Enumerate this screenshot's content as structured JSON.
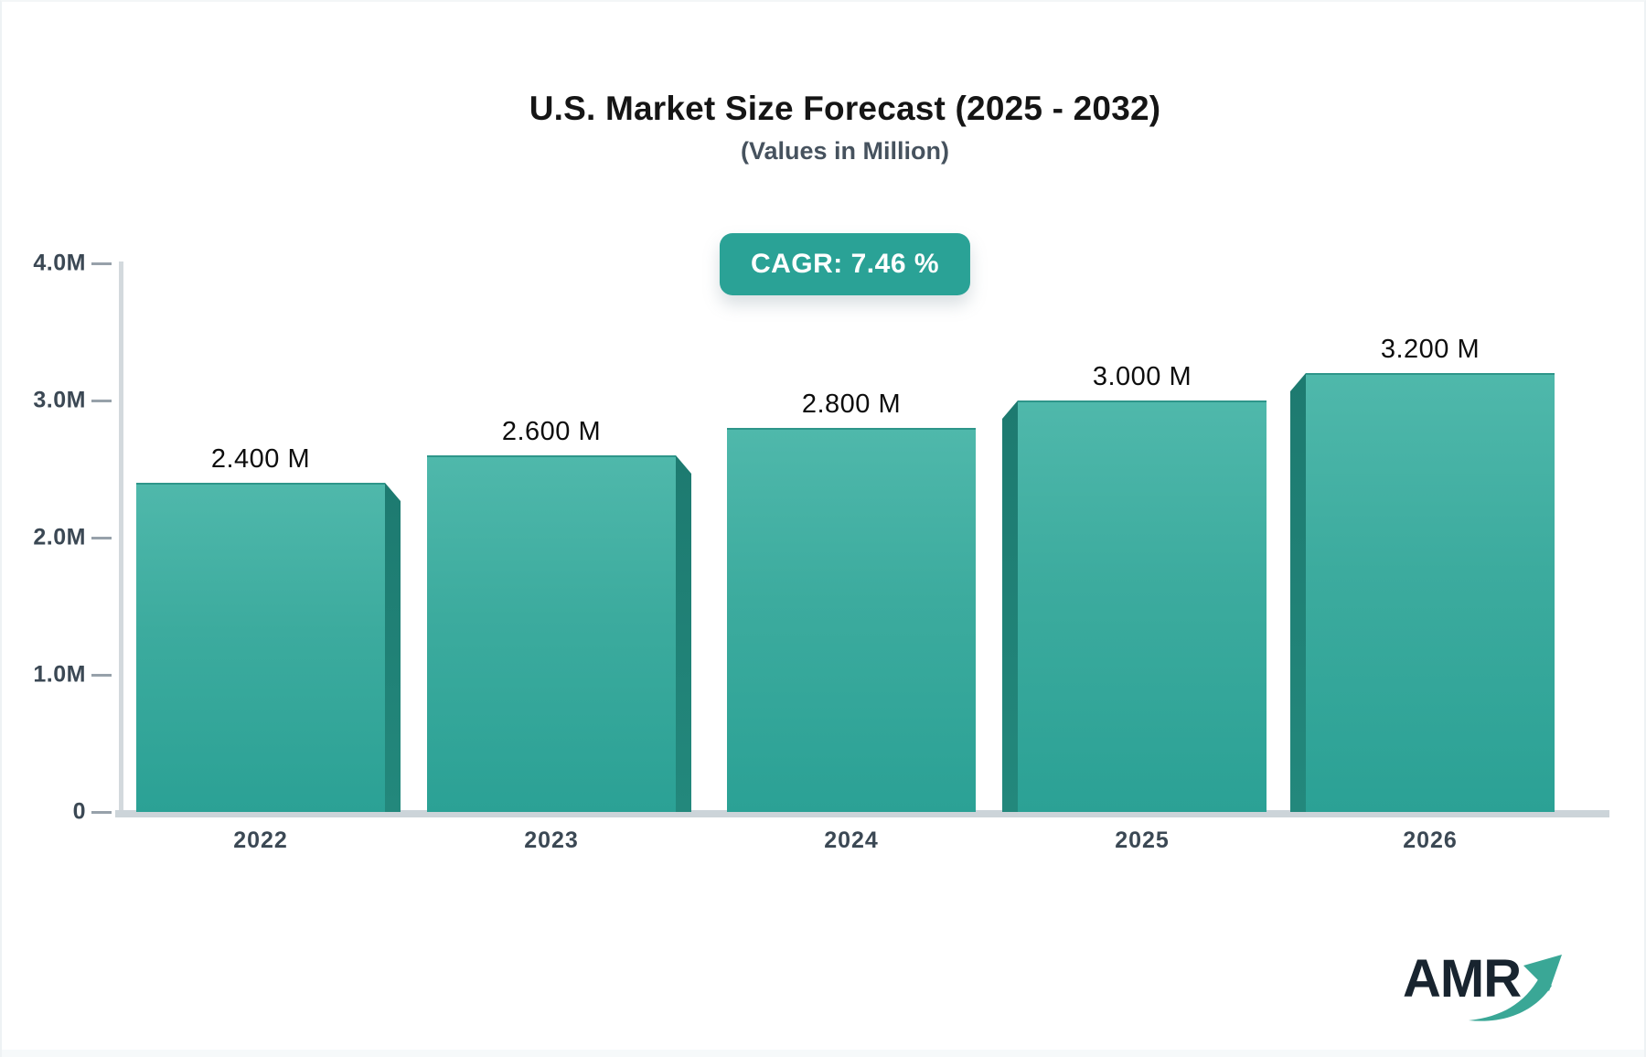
{
  "chart_data": {
    "type": "bar",
    "title": "U.S. Market Size Forecast (2025 - 2032)",
    "subtitle": "(Values in Million)",
    "annotation": "CAGR: 7.46 %",
    "categories": [
      "2022",
      "2023",
      "2024",
      "2025",
      "2026"
    ],
    "values": [
      2.4,
      2.6,
      2.8,
      3.0,
      3.2
    ],
    "value_labels": [
      "2.400 M",
      "2.600 M",
      "2.800 M",
      "3.000 M",
      "3.200 M"
    ],
    "xlabel": "",
    "ylabel": "",
    "ylim": [
      0,
      4.0
    ],
    "ytick_values": [
      4.0,
      3.0,
      2.0,
      1.0,
      0
    ],
    "ytick_labels": [
      "4.0M",
      "3.0M",
      "2.0M",
      "1.0M",
      "0"
    ],
    "grid": false,
    "legend": "none",
    "bar_color": "#2ba195",
    "bar_color_light": "#4fb8ab",
    "bar_edge_color": "#1f7e74",
    "badge_color": "#2aa296",
    "axis_color": "#ccd4d9",
    "tick_text_color": "#3b4854",
    "value_text_color": "#0d0d0d"
  },
  "logo": {
    "text": "AMR",
    "text_color": "#18242f",
    "arrow_color": "#3aa796"
  }
}
